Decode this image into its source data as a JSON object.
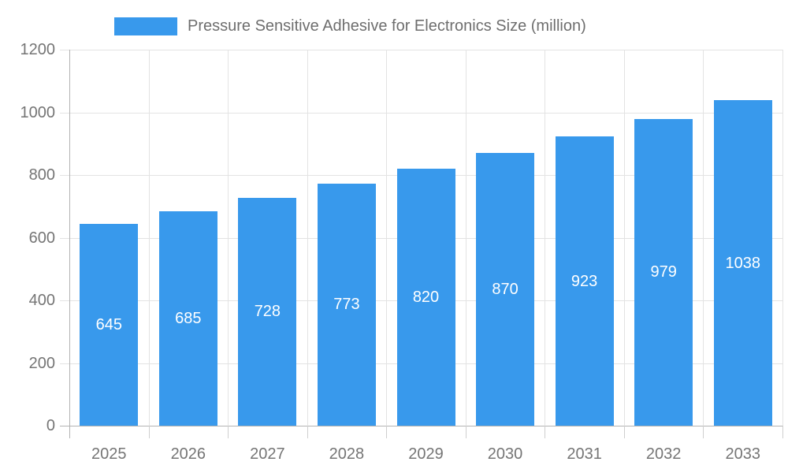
{
  "legend": {
    "label": "Pressure Sensitive Adhesive for Electronics Size (million)"
  },
  "colors": {
    "bar": "#3899ec",
    "bar_label_text": "#ffffff",
    "grid_line": "#e3e3e3",
    "axis_line": "#b3b3b3",
    "tick_mark": "#cfcfcf",
    "tick_text": "#757575",
    "legend_text": "#6e6e6e",
    "background": "#ffffff"
  },
  "chart_data": {
    "type": "bar",
    "title": "Pressure Sensitive Adhesive for Electronics Size (million)",
    "categories": [
      "2025",
      "2026",
      "2027",
      "2028",
      "2029",
      "2030",
      "2031",
      "2032",
      "2033"
    ],
    "values": [
      645,
      685,
      728,
      773,
      820,
      870,
      923,
      979,
      1038
    ],
    "xlabel": "",
    "ylabel": "",
    "ylim": [
      0,
      1200
    ],
    "yticks": [
      0,
      200,
      400,
      600,
      800,
      1000,
      1200
    ],
    "grid": true,
    "legend_position": "top",
    "data_labels": "inside-center"
  }
}
